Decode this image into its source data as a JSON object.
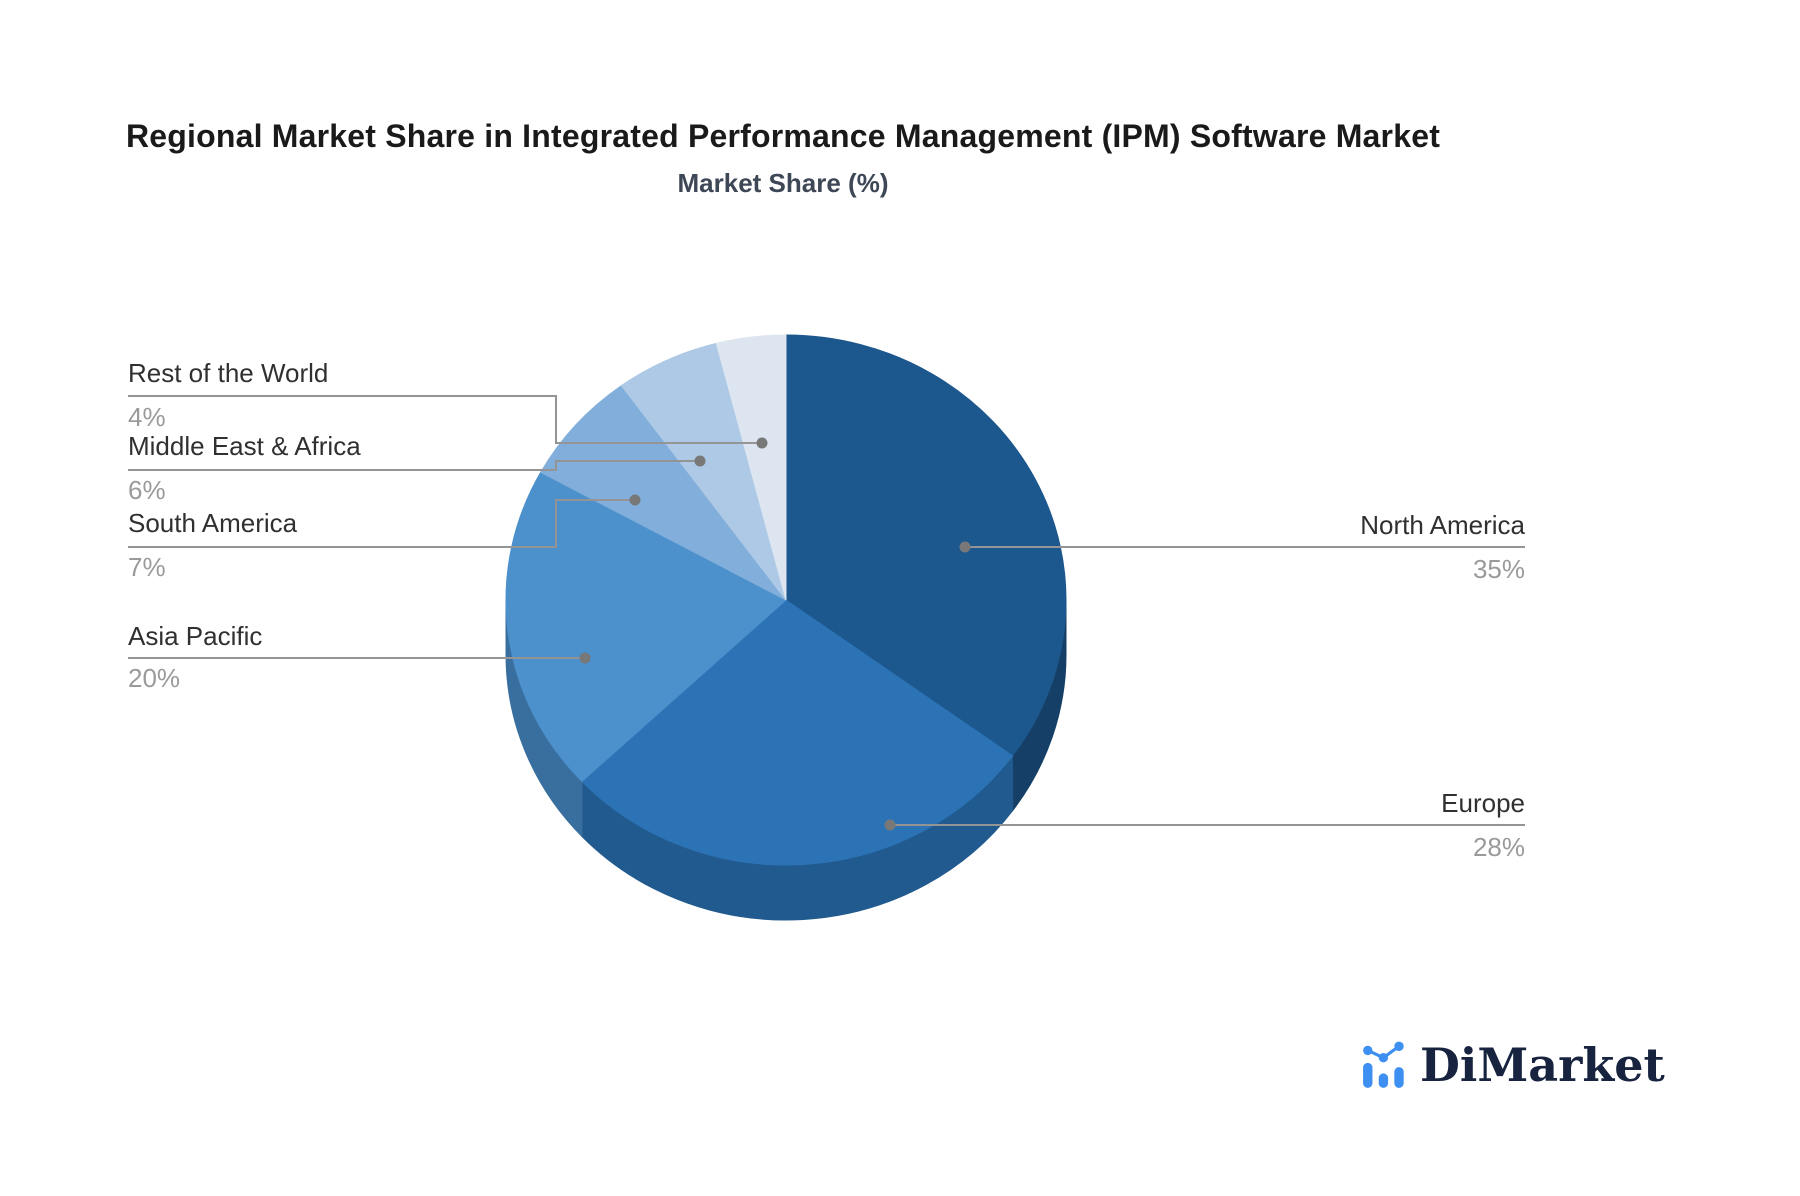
{
  "chart_data": {
    "type": "pie",
    "effect": "3d",
    "title": "Regional Market Share in Integrated Performance Management (IPM) Software Market",
    "subtitle": "Market Share (%)",
    "unit": "%",
    "start_angle_deg": 0,
    "direction": "clockwise",
    "series": [
      {
        "label": "North America",
        "value": 35,
        "display": "35%",
        "color": "#1c578d",
        "rim_color": "#153f66",
        "label_side": "right"
      },
      {
        "label": "Europe",
        "value": 28,
        "display": "28%",
        "color": "#2c73b6",
        "rim_color": "#215a8e",
        "label_side": "right"
      },
      {
        "label": "Asia Pacific",
        "value": 20,
        "display": "20%",
        "color": "#4c90cc",
        "rim_color": "#396f9e",
        "label_side": "left"
      },
      {
        "label": "South America",
        "value": 7,
        "display": "7%",
        "color": "#81aeda",
        "rim_color": "#6288ac",
        "label_side": "left"
      },
      {
        "label": "Middle East & Africa",
        "value": 6,
        "display": "6%",
        "color": "#aec9e5",
        "rim_color": "#8ba1b8",
        "label_side": "left"
      },
      {
        "label": "Rest of the World",
        "value": 4,
        "display": "4%",
        "color": "#dde5f0",
        "rim_color": "#b2bac4",
        "label_side": "left"
      }
    ],
    "legend": "none",
    "style": {
      "leader_line_color": "#949494",
      "leader_dot_color": "#787878",
      "label_text_color": "#303030",
      "percent_text_color": "#9a9a9a",
      "title_color": "#1a1a1a",
      "subtitle_color": "#3e4756"
    }
  },
  "logo": {
    "text": "DiMarket",
    "icon": "bar-line-chart-icon",
    "icon_color": "#3d8ff2",
    "text_color": "#17233f"
  }
}
